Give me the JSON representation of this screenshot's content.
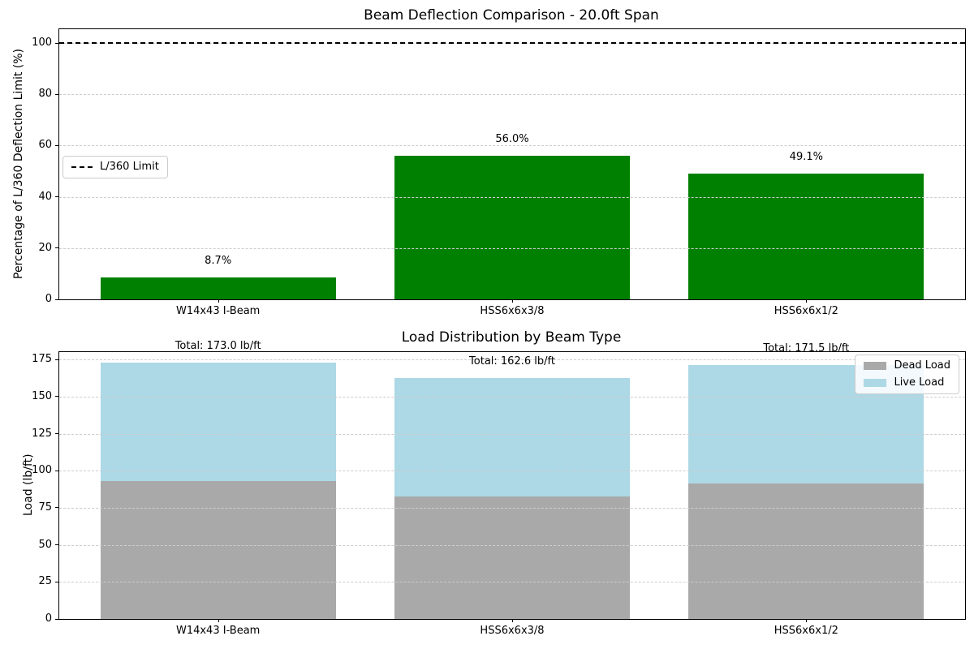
{
  "figure": {
    "background": "#ffffff"
  },
  "chart_data": [
    {
      "type": "bar",
      "title": "Beam Deflection Comparison - 20.0ft Span",
      "ylabel": "Percentage of L/360 Deflection Limit (%)",
      "xlabel": "",
      "categories": [
        "W14x43 I-Beam",
        "HSS6x6x3/8",
        "HSS6x6x1/2"
      ],
      "values": [
        8.7,
        56.0,
        49.1
      ],
      "bar_labels": [
        "8.7%",
        "56.0%",
        "49.1%"
      ],
      "bar_color": "#008000",
      "ylim": [
        0,
        105.4
      ],
      "yticks": [
        0,
        20,
        40,
        60,
        80,
        100
      ],
      "grid": "horizontal-dashed",
      "limit_line": {
        "value": 100,
        "color": "#000000",
        "style": "dashed"
      },
      "legend_position": "center-left",
      "legend_entries": [
        {
          "label": "L/360 Limit",
          "swatch": "dashed-line",
          "color": "#000000"
        }
      ]
    },
    {
      "type": "stacked-bar",
      "title": "Load Distribution by Beam Type",
      "ylabel": "Load (lb/ft)",
      "xlabel": "",
      "categories": [
        "W14x43 I-Beam",
        "HSS6x6x3/8",
        "HSS6x6x1/2"
      ],
      "series": [
        {
          "name": "Dead Load",
          "color": "#a9a9a9",
          "values": [
            93.0,
            82.6,
            91.5
          ]
        },
        {
          "name": "Live Load",
          "color": "#add8e6",
          "values": [
            80.0,
            80.0,
            80.0
          ]
        }
      ],
      "totals": [
        173.0,
        162.6,
        171.5
      ],
      "total_labels": [
        "Total: 173.0 lb/ft",
        "Total: 162.6 lb/ft",
        "Total: 171.5 lb/ft"
      ],
      "ylim": [
        0,
        180
      ],
      "yticks": [
        0,
        25,
        50,
        75,
        100,
        125,
        150,
        175
      ],
      "grid": "horizontal-dashed",
      "legend_position": "top-right"
    }
  ]
}
